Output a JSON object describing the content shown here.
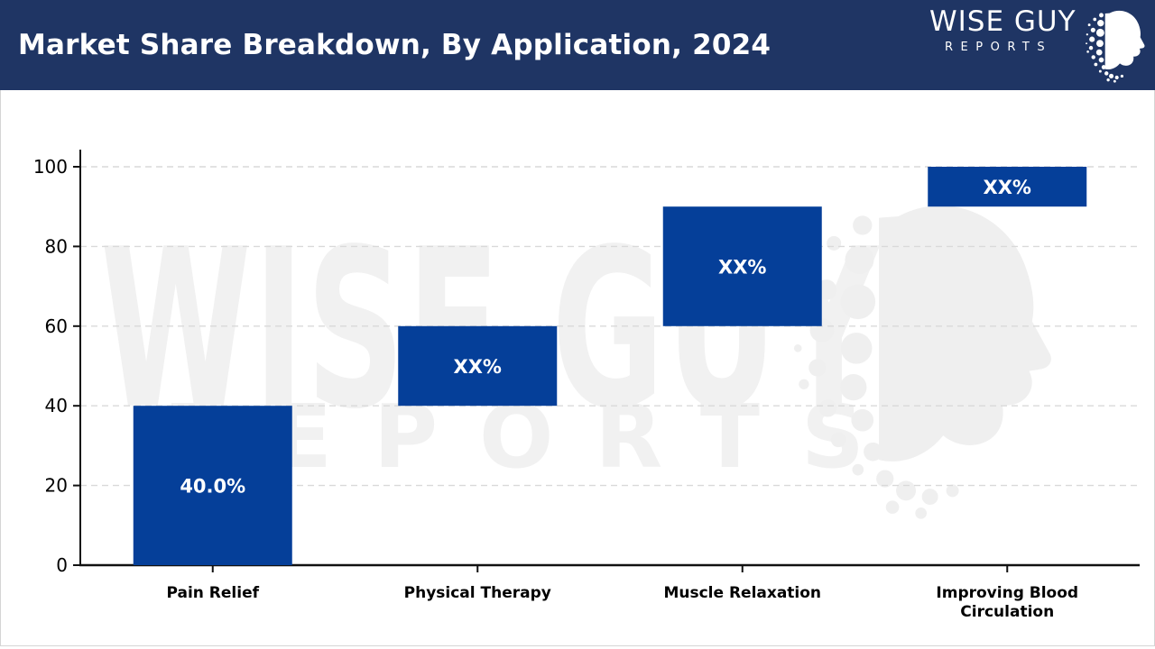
{
  "header": {
    "title": "Market Share Breakdown, By Application, 2024",
    "logo": {
      "line1": "WISE GUY",
      "line2": "REPORTS"
    }
  },
  "watermark": {
    "line1": "WISE GUY",
    "line2": "REPORTS"
  },
  "colors": {
    "header_bg": "#1f3564",
    "bar": "#053f99",
    "axis": "#111111",
    "grid": "#d9d9d9",
    "watermark_text": "#f1f1f1",
    "watermark_head": "#efefef",
    "frame_border": "#d5d5d5",
    "label_on_bar": "#ffffff",
    "tick_text": "#000000"
  },
  "chart_data": {
    "type": "bar",
    "subtype": "waterfall",
    "title": "Market Share Breakdown, By Application, 2024",
    "categories": [
      "Pain Relief",
      "Physical Therapy",
      "Muscle Relaxation",
      "Improving Blood Circulation"
    ],
    "category_label_lines": [
      [
        "Pain Relief"
      ],
      [
        "Physical Therapy"
      ],
      [
        "Muscle Relaxation"
      ],
      [
        "Improving Blood",
        "Circulation"
      ]
    ],
    "series": [
      {
        "name": "Market share (%)",
        "segments": [
          {
            "category": "Pain Relief",
            "start": 0,
            "end": 40,
            "label": "40.0%"
          },
          {
            "category": "Physical Therapy",
            "start": 40,
            "end": 60,
            "label": "XX%"
          },
          {
            "category": "Muscle Relaxation",
            "start": 60,
            "end": 90,
            "label": "XX%"
          },
          {
            "category": "Improving Blood Circulation",
            "start": 90,
            "end": 100,
            "label": "XX%"
          }
        ]
      }
    ],
    "ylim": [
      0,
      100
    ],
    "yticks": [
      0,
      20,
      40,
      60,
      80,
      100
    ],
    "xlabel": "",
    "ylabel": "",
    "grid": "horizontal-dashed",
    "legend": "none"
  }
}
